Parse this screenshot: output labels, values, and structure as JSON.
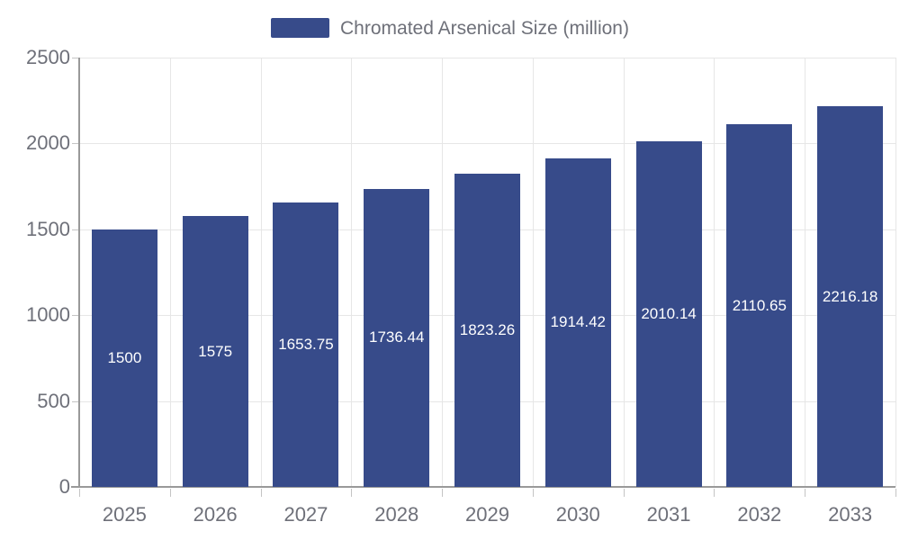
{
  "chart_data": {
    "type": "bar",
    "legend": {
      "label": "Chromated Arsenical Size (million)",
      "position": "top"
    },
    "categories": [
      "2025",
      "2026",
      "2027",
      "2028",
      "2029",
      "2030",
      "2031",
      "2032",
      "2033"
    ],
    "series": [
      {
        "name": "Chromated Arsenical Size (million)",
        "values": [
          1500,
          1575,
          1653.75,
          1736.44,
          1823.26,
          1914.42,
          2010.14,
          2110.65,
          2216.18
        ],
        "value_labels": [
          "1500",
          "1575",
          "1653.75",
          "1736.44",
          "1823.26",
          "1914.42",
          "2010.14",
          "2110.65",
          "2216.18"
        ]
      }
    ],
    "xlabel": "",
    "ylabel": "",
    "ylim": [
      0,
      2500
    ],
    "yticks": [
      0,
      500,
      1000,
      1500,
      2000,
      2500
    ],
    "grid": true,
    "value_label_position": "inside-center",
    "colors": {
      "bar": "#374b8a",
      "bar_label": "#ffffff",
      "axis_label": "#6e7079",
      "legend_text": "#6e7079",
      "grid_line": "#e6e6e6",
      "axis_line": "#999999",
      "tick": "#c4c4c4",
      "background": "#ffffff"
    }
  }
}
